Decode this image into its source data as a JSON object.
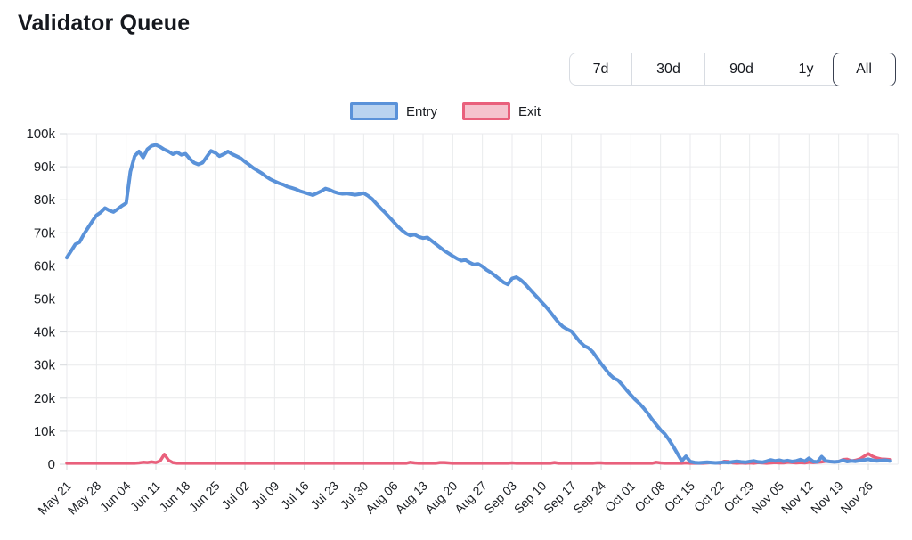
{
  "page": {
    "title": "Validator Queue"
  },
  "range_buttons": {
    "options": [
      "7d",
      "30d",
      "90d",
      "1y",
      "All"
    ],
    "selected": "All"
  },
  "chart_data": {
    "type": "line",
    "title": "Validator Queue",
    "xlabel": "",
    "ylabel": "",
    "y_unit": "validators (thousands shown as k)",
    "ylim": [
      0,
      100000
    ],
    "grid": true,
    "legend_position": "top",
    "y_tick_labels": [
      "0",
      "10k",
      "20k",
      "30k",
      "40k",
      "50k",
      "60k",
      "70k",
      "80k",
      "90k",
      "100k"
    ],
    "x_tick_labels": [
      "May 21",
      "May 28",
      "Jun 04",
      "Jun 11",
      "Jun 18",
      "Jun 25",
      "Jul 02",
      "Jul 09",
      "Jul 16",
      "Jul 23",
      "Jul 30",
      "Aug 06",
      "Aug 13",
      "Aug 20",
      "Aug 27",
      "Sep 03",
      "Sep 10",
      "Sep 17",
      "Sep 24",
      "Oct 01",
      "Oct 08",
      "Oct 15",
      "Oct 22",
      "Oct 29",
      "Nov 05",
      "Nov 12",
      "Nov 19",
      "Nov 26"
    ],
    "x_tick_interval_days": 7,
    "colors": {
      "entry_line": "#5a92d9",
      "entry_fill": "#b9d3f0",
      "exit_line": "#e9607c",
      "exit_fill": "#f5c3ce",
      "grid": "#e9eaec",
      "tick": "#d6d9dc",
      "axis_text": "#1d2025"
    },
    "series": [
      {
        "name": "Entry",
        "color": "#5a92d9",
        "fill": "#b9d3f0",
        "values_thousands": [
          62.5,
          64.5,
          66.5,
          67.2,
          69.5,
          71.5,
          73.5,
          75.3,
          76.2,
          77.5,
          76.8,
          76.3,
          77.2,
          78.2,
          79.0,
          88.5,
          93.2,
          94.6,
          92.8,
          95.3,
          96.3,
          96.6,
          96.0,
          95.2,
          94.6,
          93.8,
          94.4,
          93.6,
          93.9,
          92.4,
          91.2,
          90.7,
          91.2,
          93.0,
          94.8,
          94.2,
          93.2,
          93.8,
          94.6,
          93.8,
          93.2,
          92.6,
          91.5,
          90.6,
          89.6,
          88.8,
          88.0,
          87.0,
          86.2,
          85.6,
          85.0,
          84.6,
          84.0,
          83.6,
          83.2,
          82.6,
          82.2,
          81.8,
          81.4,
          82.0,
          82.6,
          83.4,
          83.0,
          82.4,
          82.0,
          81.8,
          81.9,
          81.7,
          81.5,
          81.7,
          82.0,
          81.2,
          80.2,
          78.8,
          77.4,
          76.2,
          74.8,
          73.4,
          72.0,
          70.8,
          69.8,
          69.2,
          69.5,
          68.8,
          68.4,
          68.6,
          67.6,
          66.6,
          65.6,
          64.6,
          63.8,
          63.0,
          62.2,
          61.6,
          61.8,
          61.0,
          60.4,
          60.6,
          59.8,
          58.8,
          58.0,
          57.0,
          56.0,
          55.0,
          54.4,
          56.2,
          56.6,
          55.8,
          54.6,
          53.2,
          51.8,
          50.4,
          49.0,
          47.6,
          46.0,
          44.4,
          42.8,
          41.6,
          40.8,
          40.2,
          38.6,
          37.0,
          35.8,
          35.2,
          34.0,
          32.2,
          30.4,
          28.8,
          27.2,
          26.0,
          25.4,
          24.0,
          22.4,
          21.0,
          19.6,
          18.4,
          17.0,
          15.4,
          13.6,
          12.0,
          10.4,
          9.2,
          7.4,
          5.4,
          3.2,
          1.0,
          2.4,
          0.8,
          0.5,
          0.4,
          0.5,
          0.6,
          0.5,
          0.4,
          0.5,
          0.6,
          0.5,
          0.7,
          0.9,
          0.7,
          0.6,
          0.8,
          1.0,
          0.7,
          0.6,
          0.9,
          1.3,
          1.0,
          1.2,
          0.9,
          1.1,
          0.8,
          1.0,
          1.4,
          0.9,
          1.8,
          0.8,
          0.7,
          2.3,
          1.0,
          0.8,
          0.7,
          0.8,
          1.2,
          0.8,
          1.0,
          0.9,
          1.1,
          1.3,
          1.5,
          1.2,
          1.0,
          1.1,
          1.2,
          1.0
        ]
      },
      {
        "name": "Exit",
        "color": "#e9607c",
        "fill": "#f5c3ce",
        "values_thousands": [
          0.3,
          0.3,
          0.3,
          0.3,
          0.3,
          0.3,
          0.3,
          0.3,
          0.3,
          0.3,
          0.3,
          0.3,
          0.3,
          0.3,
          0.3,
          0.3,
          0.3,
          0.4,
          0.6,
          0.5,
          0.7,
          0.5,
          1.0,
          3.0,
          1.2,
          0.5,
          0.3,
          0.3,
          0.3,
          0.3,
          0.3,
          0.3,
          0.3,
          0.3,
          0.3,
          0.3,
          0.3,
          0.3,
          0.3,
          0.3,
          0.3,
          0.3,
          0.3,
          0.3,
          0.3,
          0.3,
          0.3,
          0.3,
          0.3,
          0.3,
          0.3,
          0.3,
          0.3,
          0.3,
          0.3,
          0.3,
          0.3,
          0.3,
          0.3,
          0.3,
          0.3,
          0.3,
          0.3,
          0.3,
          0.3,
          0.3,
          0.3,
          0.3,
          0.3,
          0.3,
          0.3,
          0.3,
          0.3,
          0.3,
          0.3,
          0.3,
          0.3,
          0.3,
          0.3,
          0.3,
          0.3,
          0.6,
          0.4,
          0.3,
          0.3,
          0.3,
          0.3,
          0.3,
          0.5,
          0.5,
          0.4,
          0.3,
          0.3,
          0.3,
          0.3,
          0.3,
          0.3,
          0.3,
          0.3,
          0.3,
          0.3,
          0.3,
          0.3,
          0.3,
          0.3,
          0.4,
          0.3,
          0.3,
          0.3,
          0.3,
          0.3,
          0.3,
          0.3,
          0.3,
          0.3,
          0.5,
          0.3,
          0.3,
          0.3,
          0.3,
          0.3,
          0.3,
          0.3,
          0.3,
          0.3,
          0.4,
          0.4,
          0.3,
          0.3,
          0.3,
          0.3,
          0.3,
          0.3,
          0.3,
          0.3,
          0.3,
          0.3,
          0.3,
          0.3,
          0.6,
          0.4,
          0.3,
          0.3,
          0.3,
          0.3,
          0.3,
          0.4,
          0.3,
          0.3,
          0.3,
          0.3,
          0.4,
          0.5,
          0.4,
          0.3,
          0.9,
          0.8,
          0.4,
          0.3,
          0.4,
          0.3,
          0.4,
          0.3,
          0.5,
          0.4,
          0.3,
          0.4,
          0.5,
          0.4,
          0.4,
          0.6,
          0.5,
          0.4,
          0.5,
          0.4,
          0.6,
          0.5,
          0.6,
          0.7,
          0.9,
          0.8,
          0.7,
          0.8,
          1.4,
          1.5,
          1.0,
          1.2,
          1.6,
          2.4,
          3.2,
          2.4,
          1.9,
          1.6,
          1.5,
          1.4
        ]
      }
    ]
  }
}
